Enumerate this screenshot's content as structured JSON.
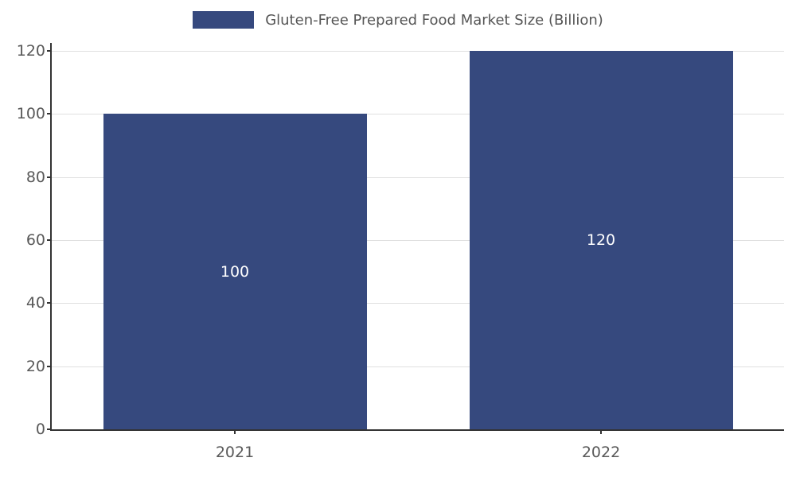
{
  "legend": {
    "label": "Gluten-Free Prepared Food Market Size (Billion)"
  },
  "chart_data": {
    "type": "bar",
    "title": "Gluten-Free Prepared Food Market Size (Billion)",
    "categories": [
      "2021",
      "2022"
    ],
    "values": [
      100,
      120
    ],
    "value_labels": [
      "100",
      "120"
    ],
    "xlabel": "",
    "ylabel": "",
    "ylim": [
      0,
      120
    ],
    "yticks": [
      0,
      20,
      40,
      60,
      80,
      100,
      120
    ],
    "grid": true,
    "legend_position": "top-center",
    "colors": {
      "bar": "#36497E",
      "bar_value_label": "#ffffff",
      "gridline": "#e0e0e0",
      "axis": "#333333",
      "tick_label": "#595959",
      "legend_text": "#555555"
    }
  }
}
